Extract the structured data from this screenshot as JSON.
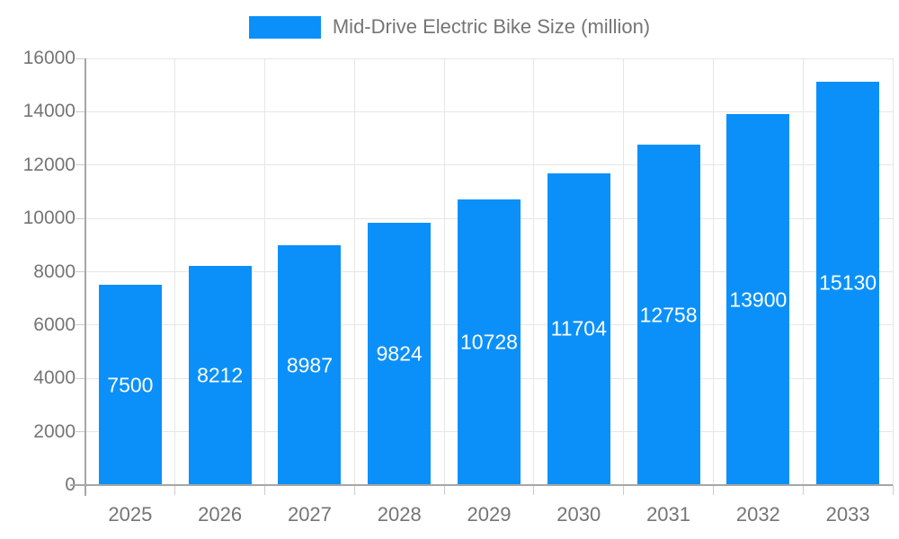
{
  "chart_data": {
    "type": "bar",
    "title": "Mid-Drive Electric Bike Size (million)",
    "categories": [
      "2025",
      "2026",
      "2027",
      "2028",
      "2029",
      "2030",
      "2031",
      "2032",
      "2033"
    ],
    "values": [
      7500,
      8212,
      8987,
      9824,
      10728,
      11704,
      12758,
      13900,
      15130
    ],
    "xlabel": "",
    "ylabel": "",
    "ylim": [
      0,
      16000
    ],
    "ytick_step": 2000,
    "ytick_labels": [
      "0",
      "2000",
      "4000",
      "6000",
      "8000",
      "10000",
      "12000",
      "14000",
      "16000"
    ],
    "grid": true,
    "legend_position": "top-center",
    "value_labels": "inside-center",
    "colors": {
      "bar": "#0b90f9",
      "value_text": "#ffffff",
      "axis_text": "#757575",
      "axis_line": "#a6a6a6",
      "grid_line": "#e6e6e6",
      "tick_line": "#cccccc",
      "background": "#ffffff"
    }
  }
}
